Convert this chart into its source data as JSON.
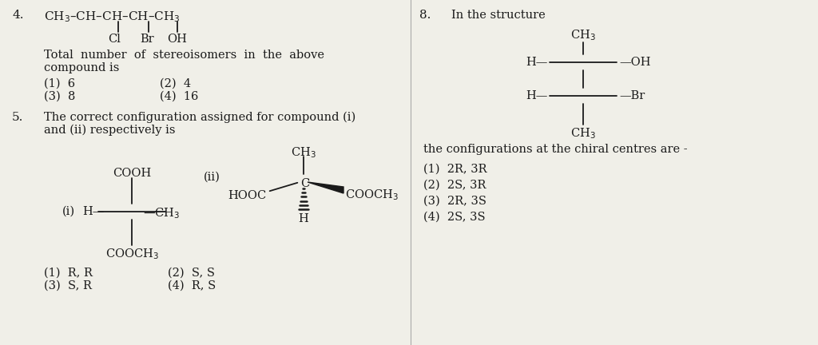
{
  "bg_color": "#f0efe8",
  "text_color": "#1a1a1a",
  "fs_main": 11.0,
  "fs_text": 10.5,
  "fs_chem": 10.5,
  "q4_num": "4.",
  "q4_chain": "CH$_3$–CH–CH–CH–CH$_3$",
  "q4_sub1": "Cl",
  "q4_sub2": "Br",
  "q4_sub3": "OH",
  "q4_line1": "Total  number  of  stereoisomers  in  the  above",
  "q4_line2": "compound is",
  "q4_opt1": "(1)  6",
  "q4_opt2": "(2)  4",
  "q4_opt3": "(3)  8",
  "q4_opt4": "(4)  16",
  "q5_num": "5.",
  "q5_line1": "The correct configuration assigned for compound (i)",
  "q5_line2": "and (ii) respectively is",
  "q5_cooh": "COOH",
  "q5_cooch3_bot": "COOCH$_3$",
  "q5_h": "H—",
  "q5_ch3": "—CH$_3$",
  "q5_label_i": "(i)",
  "q5_label_ii": "(ii)",
  "q5_hooc": "HOOC",
  "q5_cooch3_right": "COOCH$_3$",
  "q5_ch3_top": "CH$_3$",
  "q5_c": "C",
  "q5_hbot": "H",
  "q5_opt1": "(1)  R, R",
  "q5_opt2": "(2)  S, S",
  "q5_opt3": "(3)  S, R",
  "q5_opt4": "(4)  R, S",
  "q8_num": "8.",
  "q8_header": "In the structure",
  "q8_ch3_top": "CH$_3$",
  "q8_h1": "H—",
  "q8_oh": "—OH",
  "q8_h2": "H—",
  "q8_br": "—Br",
  "q8_ch3_bot": "CH$_3$",
  "q8_subq": "the configurations at the chiral centres are -",
  "q8_opt1": "(1)  2R, 3R",
  "q8_opt2": "(2)  2S, 3R",
  "q8_opt3": "(3)  2R, 3S",
  "q8_opt4": "(4)  2S, 3S"
}
